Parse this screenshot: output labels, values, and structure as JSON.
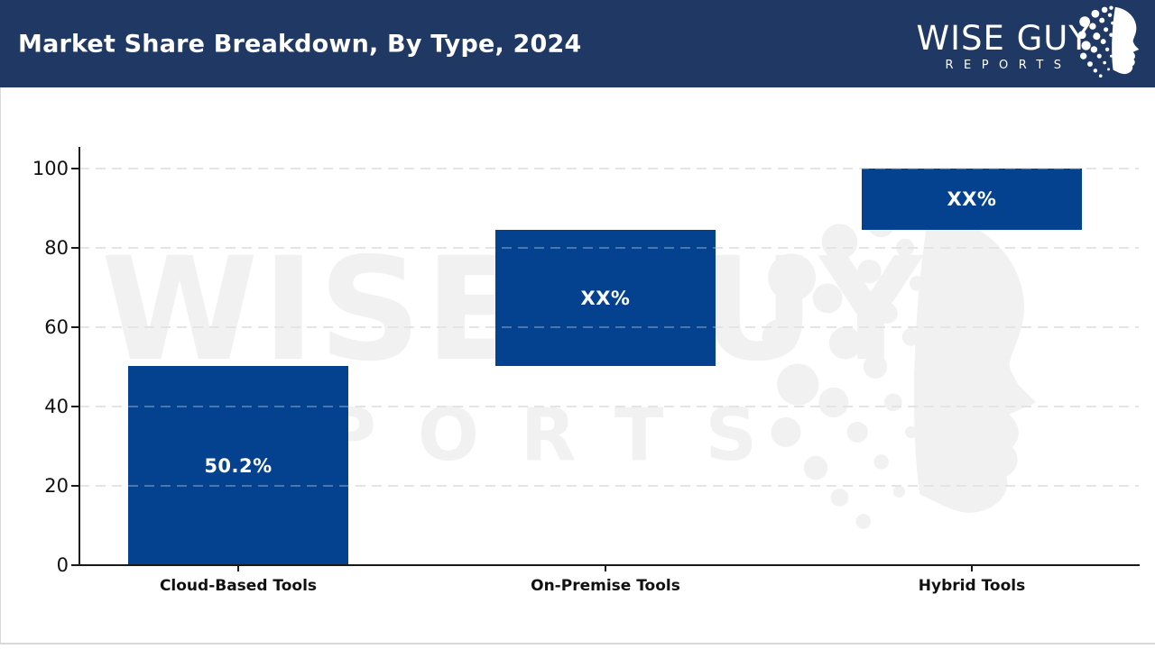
{
  "header": {
    "title": "Market Share Breakdown, By Type, 2024",
    "logo": {
      "line1": "WISE GUY",
      "line2": "REPORTS"
    }
  },
  "watermark": {
    "line1": "WISE GUY",
    "line2": "REPORTS"
  },
  "chart_data": {
    "type": "bar",
    "variant": "waterfall-floating-segments",
    "title": "Market Share Breakdown, By Type, 2024",
    "categories": [
      "Cloud-Based Tools",
      "On-Premise Tools",
      "Hybrid Tools"
    ],
    "segments": [
      {
        "category": "Cloud-Based Tools",
        "start": 0,
        "end": 50.2,
        "label": "50.2%"
      },
      {
        "category": "On-Premise Tools",
        "start": 50.2,
        "end": 84.5,
        "label": "XX%"
      },
      {
        "category": "Hybrid Tools",
        "start": 84.5,
        "end": 100,
        "label": "XX%"
      }
    ],
    "yticks": [
      0,
      20,
      40,
      60,
      80,
      100
    ],
    "ylim": [
      0,
      105
    ],
    "xlabel": "",
    "ylabel": "",
    "grid": "horizontal-dashed",
    "legend": "none",
    "colors": {
      "bar": "#04418F",
      "bar_label": "#FFFFFF",
      "header_bg": "#1F3864",
      "grid": "#D9D9D9",
      "axis": "#1A1A1A",
      "watermark": "#F1F1F1"
    }
  }
}
